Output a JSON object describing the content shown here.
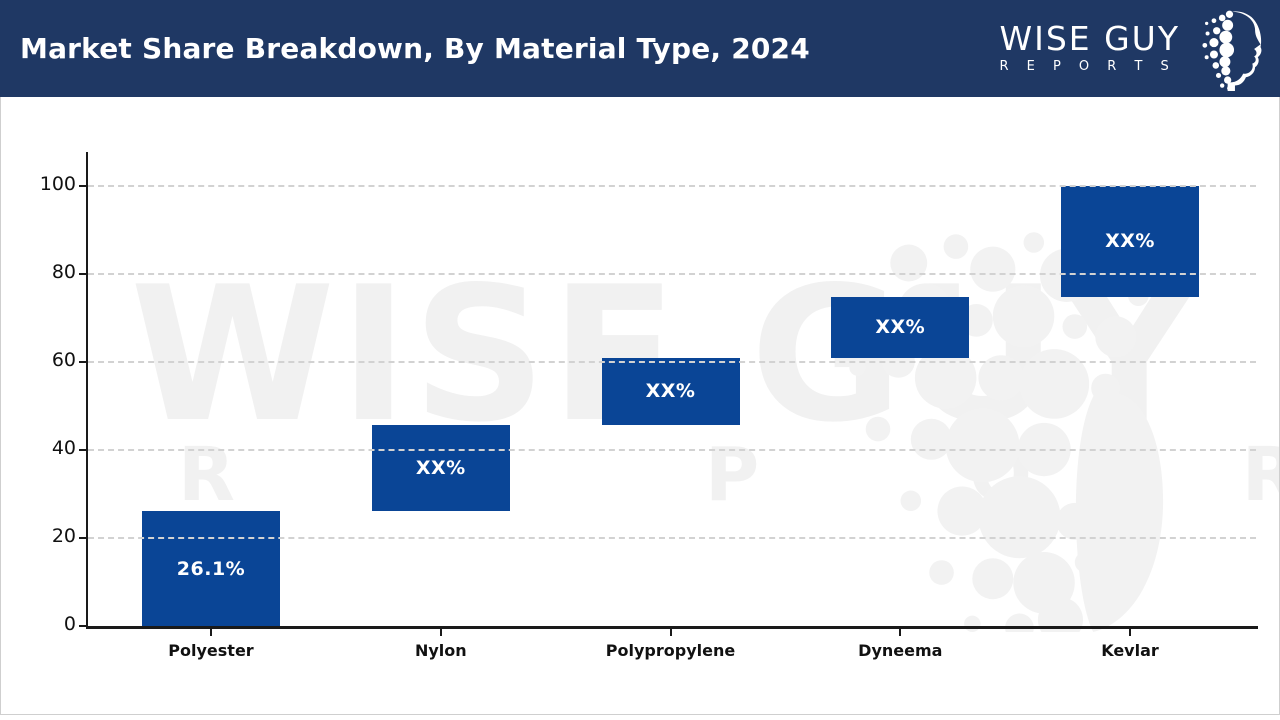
{
  "header": {
    "title": "Market Share Breakdown, By Material Type, 2024",
    "logo": {
      "wordmark": "WISE GUY",
      "subtext": "R E P O R T S"
    }
  },
  "watermark": {
    "wordmark": "WISE GUY",
    "subtext": "R E P O R T S"
  },
  "colors": {
    "header_bg": "#1f3864",
    "bar": "#0a4596",
    "axis": "#1a1a1a",
    "gridline": "#d2d2d2",
    "bar_label": "#ffffff",
    "watermark": "#f1f1f1"
  },
  "chart_data": {
    "type": "bar",
    "subtype": "waterfall",
    "title": "Market Share Breakdown, By Material Type, 2024",
    "categories": [
      "Polyester",
      "Nylon",
      "Polypropylene",
      "Dyneema",
      "Kevlar"
    ],
    "segments": [
      {
        "category": "Polyester",
        "start": 0,
        "end": 26.1,
        "label": "26.1%"
      },
      {
        "category": "Nylon",
        "start": 26.1,
        "end": 45.7,
        "label": "XX%"
      },
      {
        "category": "Polypropylene",
        "start": 45.7,
        "end": 61.0,
        "label": "XX%"
      },
      {
        "category": "Dyneema",
        "start": 61.0,
        "end": 74.8,
        "label": "XX%"
      },
      {
        "category": "Kevlar",
        "start": 74.8,
        "end": 100.0,
        "label": "XX%"
      }
    ],
    "xlabel": "",
    "ylabel": "",
    "yticks": [
      0,
      20,
      40,
      60,
      80,
      100
    ],
    "ylim": [
      0,
      108
    ],
    "grid": "horizontal dashed, drawn over bars",
    "legend": "none"
  }
}
